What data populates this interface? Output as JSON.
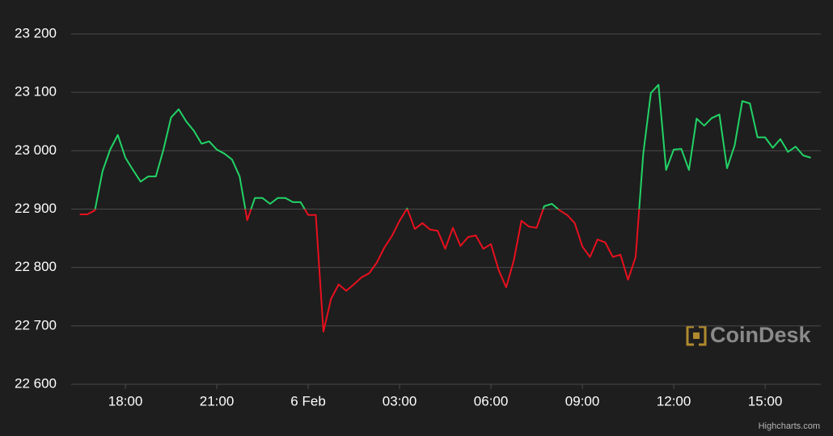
{
  "chart_data": {
    "type": "line",
    "watermark": "CoinDesk",
    "credits": "Highcharts.com",
    "x": [
      16.5,
      16.75,
      17,
      17.25,
      17.5,
      17.75,
      18,
      18.25,
      18.5,
      18.75,
      19,
      19.25,
      19.5,
      19.75,
      20,
      20.25,
      20.5,
      20.75,
      21,
      21.25,
      21.5,
      21.75,
      22,
      22.25,
      22.5,
      22.75,
      23,
      23.25,
      23.5,
      23.75,
      24,
      24.25,
      24.5,
      24.75,
      25,
      25.25,
      25.5,
      25.75,
      26,
      26.25,
      26.5,
      26.75,
      27,
      27.25,
      27.5,
      27.75,
      28,
      28.25,
      28.5,
      28.75,
      29,
      29.25,
      29.5,
      29.75,
      30,
      30.25,
      30.5,
      30.75,
      31,
      31.25,
      31.5,
      31.75,
      32,
      32.25,
      32.5,
      32.75,
      33,
      33.25,
      33.5,
      33.75,
      34,
      34.25,
      34.5,
      34.75,
      35,
      35.25,
      35.5,
      35.75,
      36,
      36.25,
      36.5,
      36.75,
      37,
      37.25,
      37.5,
      37.75,
      38,
      38.25,
      38.5,
      38.75,
      39,
      39.25,
      39.5,
      39.75,
      40,
      40.25,
      40.5
    ],
    "series": [
      {
        "values": [
          22891,
          22891,
          22898,
          22965,
          23002,
          23027,
          22988,
          22967,
          22947,
          22956,
          22956,
          23002,
          23057,
          23071,
          23050,
          23034,
          23012,
          23016,
          23002,
          22995,
          22985,
          22956,
          22881,
          22919,
          22919,
          22909,
          22919,
          22919,
          22912,
          22912,
          22890,
          22890,
          22690,
          22746,
          22771,
          22760,
          22771,
          22783,
          22790,
          22808,
          22834,
          22854,
          22880,
          22901,
          22866,
          22876,
          22865,
          22863,
          22832,
          22868,
          22837,
          22852,
          22855,
          22832,
          22840,
          22796,
          22766,
          22812,
          22880,
          22870,
          22868,
          22905,
          22909,
          22898,
          22890,
          22876,
          22836,
          22818,
          22848,
          22843,
          22818,
          22822,
          22779,
          22818,
          22995,
          23099,
          23113,
          22967,
          23002,
          23003,
          22967,
          23055,
          23043,
          23056,
          23062,
          22970,
          23009,
          23085,
          23081,
          23023,
          23023,
          23005,
          23020,
          22998,
          23007,
          22992,
          22988
        ],
        "color": "#22d366",
        "negative_color": "#e8101e",
        "threshold": 22900
      }
    ],
    "xlim": [
      16.22,
      40.83
    ],
    "xticks": [
      {
        "value": 18,
        "label": "18:00"
      },
      {
        "value": 21,
        "label": "21:00"
      },
      {
        "value": 24,
        "label": "6 Feb"
      },
      {
        "value": 27,
        "label": "03:00"
      },
      {
        "value": 30,
        "label": "06:00"
      },
      {
        "value": 33,
        "label": "09:00"
      },
      {
        "value": 36,
        "label": "12:00"
      },
      {
        "value": 39,
        "label": "15:00"
      }
    ],
    "ylim": [
      22600,
      23200
    ],
    "yticks": [
      {
        "value": 22600,
        "label": "22 600"
      },
      {
        "value": 22700,
        "label": "22 700"
      },
      {
        "value": 22800,
        "label": "22 800"
      },
      {
        "value": 22900,
        "label": "22 900"
      },
      {
        "value": 23000,
        "label": "23 000"
      },
      {
        "value": 23100,
        "label": "23 100"
      },
      {
        "value": 23200,
        "label": "23 200"
      }
    ],
    "grid": true
  }
}
